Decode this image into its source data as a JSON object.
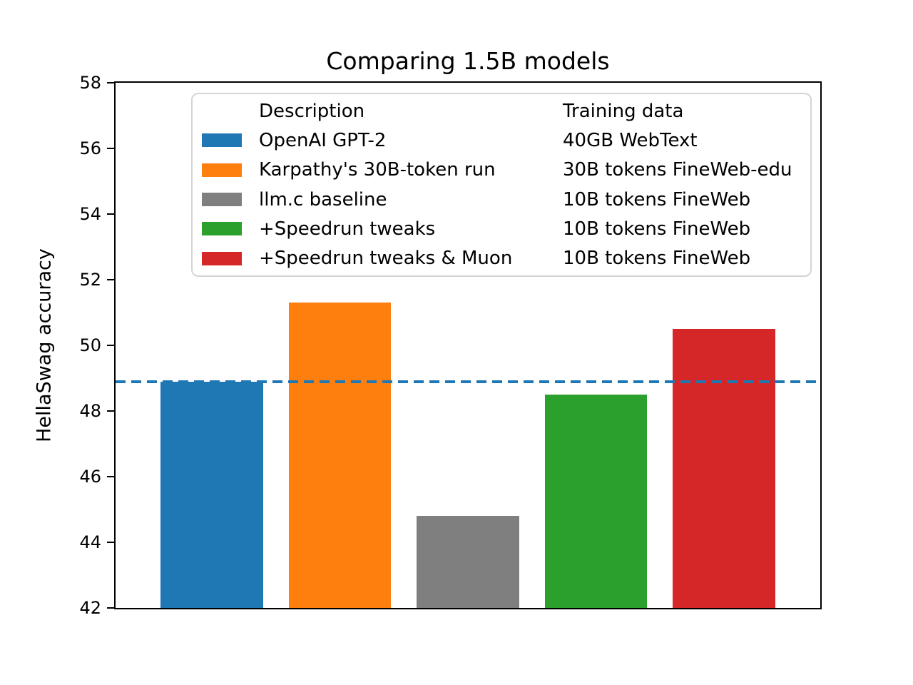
{
  "chart_data": {
    "type": "bar",
    "title": "Comparing 1.5B models",
    "ylabel": "HellaSwag accuracy",
    "xlabel": "",
    "ylim": [
      42,
      58
    ],
    "yticks": [
      42,
      44,
      46,
      48,
      50,
      52,
      54,
      56,
      58
    ],
    "grid": "off",
    "legend_position": "upper center inside plot",
    "legend_headers": {
      "description": "Description",
      "training_data": "Training data"
    },
    "bars": [
      {
        "description": "OpenAI GPT-2",
        "training_data": "40GB WebText",
        "value": 48.9,
        "color": "#1f77b4"
      },
      {
        "description": "Karpathy's 30B-token run",
        "training_data": "30B tokens FineWeb-edu",
        "value": 51.3,
        "color": "#ff7f0e"
      },
      {
        "description": "llm.c baseline",
        "training_data": "10B tokens FineWeb",
        "value": 44.8,
        "color": "#7f7f7f"
      },
      {
        "description": "+Speedrun tweaks",
        "training_data": "10B tokens FineWeb",
        "value": 48.5,
        "color": "#2ca02c"
      },
      {
        "description": "+Speedrun tweaks & Muon",
        "training_data": "10B tokens FineWeb",
        "value": 50.5,
        "color": "#d62728"
      }
    ],
    "reference_line": {
      "value": 48.9,
      "color": "#1f77b4",
      "style": "dashed",
      "meaning": "OpenAI GPT-2 level"
    },
    "layout": {
      "x_units": 5.5,
      "x_offset": 0.75,
      "bar_width_units": 0.8
    }
  }
}
